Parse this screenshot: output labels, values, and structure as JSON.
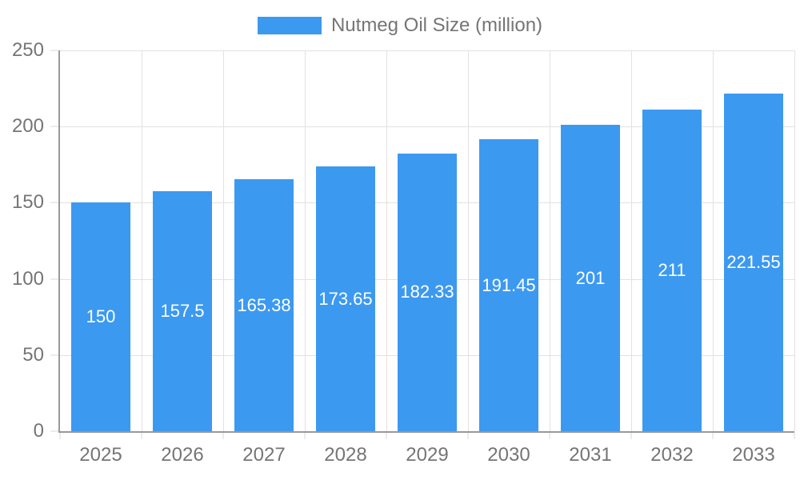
{
  "legend": {
    "items": [
      {
        "label": "Nutmeg Oil Size (million)",
        "color": "#3C99F0"
      }
    ]
  },
  "chart_data": {
    "type": "bar",
    "title": "Nutmeg Oil Size (million)",
    "categories": [
      "2025",
      "2026",
      "2027",
      "2028",
      "2029",
      "2030",
      "2031",
      "2032",
      "2033"
    ],
    "values": [
      150,
      157.5,
      165.38,
      173.65,
      182.33,
      191.45,
      201,
      211,
      221.55
    ],
    "value_labels": [
      "150",
      "157.5",
      "165.38",
      "173.65",
      "182.33",
      "191.45",
      "201",
      "211",
      "221.55"
    ],
    "xlabel": "",
    "ylabel": "",
    "ylim": [
      0,
      250
    ],
    "ytick_interval": 50,
    "ytick_labels": [
      "0",
      "50",
      "100",
      "150",
      "200",
      "250"
    ],
    "grid": true,
    "legend_position": "top-center",
    "colors": {
      "bar": "#3C99F0",
      "grid": "#E2E2E2",
      "axis": "#999999",
      "text": "#757575",
      "bar_label": "#FFFFFF",
      "tick": "#D8D8D8"
    }
  }
}
